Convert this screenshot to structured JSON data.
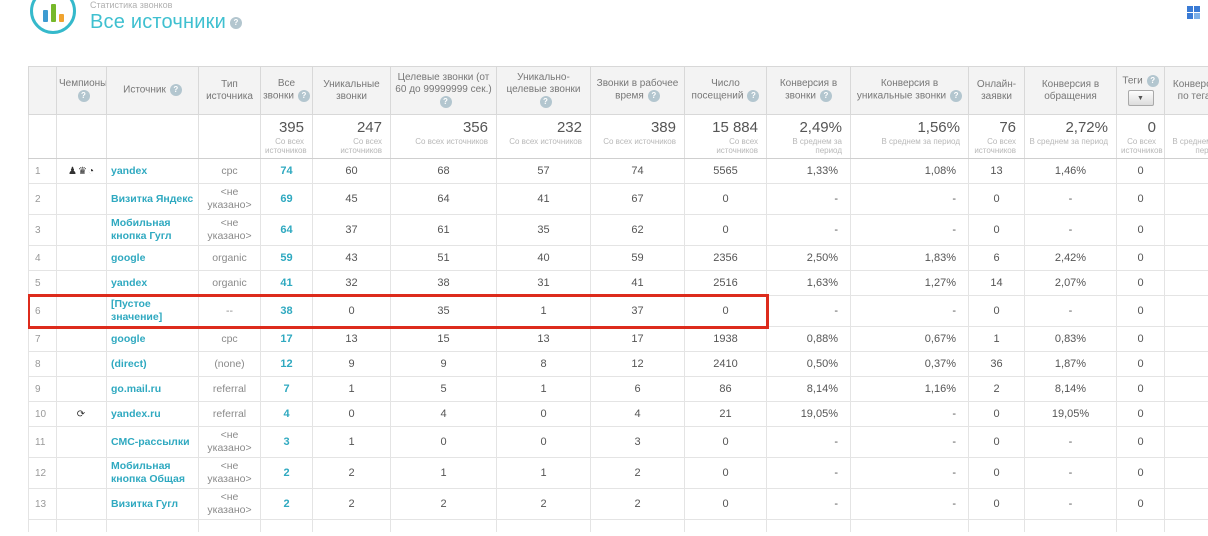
{
  "page": {
    "breadcrumb": "Статистика звонков",
    "title": "Все источники"
  },
  "icons": {
    "help_glyph": "?",
    "dropdown_glyph": "▼"
  },
  "table": {
    "highlight_color": "#dd2b1c",
    "columns": [
      {
        "label": "",
        "help": false
      },
      {
        "label": "Чемпионы",
        "help": true
      },
      {
        "label": "Источник",
        "help": true
      },
      {
        "label": "Тип источника",
        "help": false
      },
      {
        "label": "Все звонки",
        "help": true
      },
      {
        "label": "Уникальные звонки",
        "help": false
      },
      {
        "label": "Целевые звонки (от 60 до 99999999 сек.)",
        "help": true
      },
      {
        "label": "Уникально-целевые звонки",
        "help": true
      },
      {
        "label": "Звонки в рабочее время",
        "help": true
      },
      {
        "label": "Число посещений",
        "help": true
      },
      {
        "label": "Конверсия в звонки",
        "help": true
      },
      {
        "label": "Конверсия в уникальные звонки",
        "help": true
      },
      {
        "label": "Онлайн-заявки",
        "help": false
      },
      {
        "label": "Конверсия в обращения",
        "help": false
      },
      {
        "label": "Теги",
        "help": true,
        "dropdown": true
      },
      {
        "label": "Конверсия по тегам",
        "help": false
      }
    ],
    "totals": [
      {
        "value": "395",
        "caption": "Со всех источников"
      },
      {
        "value": "247",
        "caption": "Со всех источников"
      },
      {
        "value": "356",
        "caption": "Со всех источников"
      },
      {
        "value": "232",
        "caption": "Со всех источников"
      },
      {
        "value": "389",
        "caption": "Со всех источников"
      },
      {
        "value": "15 884",
        "caption": "Со всех источников"
      },
      {
        "value": "2,49%",
        "caption": "В среднем за период"
      },
      {
        "value": "1,56%",
        "caption": "В среднем за период"
      },
      {
        "value": "76",
        "caption": "Со всех источников"
      },
      {
        "value": "2,72%",
        "caption": "В среднем за период"
      },
      {
        "value": "0",
        "caption": "Со всех источников"
      },
      {
        "value": "-",
        "caption": "В среднем за период"
      }
    ],
    "rows": [
      {
        "num": "1",
        "champions": [
          {
            "name": "pawn-icon",
            "glyph": "♟"
          },
          {
            "name": "crown-icon",
            "glyph": "♛"
          },
          {
            "name": "clock-icon",
            "glyph": "◔"
          }
        ],
        "source": "yandex",
        "type": "cpc",
        "values": [
          "74",
          "60",
          "68",
          "57",
          "74",
          "5565",
          "1,33%",
          "1,08%",
          "13",
          "1,46%",
          "0",
          "-"
        ]
      },
      {
        "num": "2",
        "champions": [],
        "source": "Визитка Яндекс",
        "type": "<не указано>",
        "values": [
          "69",
          "45",
          "64",
          "41",
          "67",
          "0",
          "-",
          "-",
          "0",
          "-",
          "0",
          "-"
        ]
      },
      {
        "num": "3",
        "champions": [],
        "source": "Мобильная кнопка Гугл",
        "type": "<не указано>",
        "values": [
          "64",
          "37",
          "61",
          "35",
          "62",
          "0",
          "-",
          "-",
          "0",
          "-",
          "0",
          "-"
        ]
      },
      {
        "num": "4",
        "champions": [],
        "source": "google",
        "type": "organic",
        "values": [
          "59",
          "43",
          "51",
          "40",
          "59",
          "2356",
          "2,50%",
          "1,83%",
          "6",
          "2,42%",
          "0",
          "-"
        ]
      },
      {
        "num": "5",
        "champions": [],
        "source": "yandex",
        "type": "organic",
        "values": [
          "41",
          "32",
          "38",
          "31",
          "41",
          "2516",
          "1,63%",
          "1,27%",
          "14",
          "2,07%",
          "0",
          "-"
        ]
      },
      {
        "num": "6",
        "champions": [],
        "source": "[Пустое значение]",
        "type": "--",
        "highlight": true,
        "values": [
          "38",
          "0",
          "35",
          "1",
          "37",
          "0",
          "-",
          "-",
          "0",
          "-",
          "0",
          "-"
        ]
      },
      {
        "num": "7",
        "champions": [],
        "source": "google",
        "type": "cpc",
        "values": [
          "17",
          "13",
          "15",
          "13",
          "17",
          "1938",
          "0,88%",
          "0,67%",
          "1",
          "0,83%",
          "0",
          "-"
        ]
      },
      {
        "num": "8",
        "champions": [],
        "source": "(direct)",
        "type": "(none)",
        "values": [
          "12",
          "9",
          "9",
          "8",
          "12",
          "2410",
          "0,50%",
          "0,37%",
          "36",
          "1,87%",
          "0",
          "-"
        ]
      },
      {
        "num": "9",
        "champions": [],
        "source": "go.mail.ru",
        "type": "referral",
        "values": [
          "7",
          "1",
          "5",
          "1",
          "6",
          "86",
          "8,14%",
          "1,16%",
          "2",
          "8,14%",
          "0",
          "-"
        ]
      },
      {
        "num": "10",
        "champions": [
          {
            "name": "refresh-icon",
            "glyph": "⟳"
          }
        ],
        "source": "yandex.ru",
        "type": "referral",
        "values": [
          "4",
          "0",
          "4",
          "0",
          "4",
          "21",
          "19,05%",
          "-",
          "0",
          "19,05%",
          "0",
          "-"
        ]
      },
      {
        "num": "11",
        "champions": [],
        "source": "СМС-рассылки",
        "type": "<не указано>",
        "values": [
          "3",
          "1",
          "0",
          "0",
          "3",
          "0",
          "-",
          "-",
          "0",
          "-",
          "0",
          "-"
        ]
      },
      {
        "num": "12",
        "champions": [],
        "source": "Мобильная кнопка Общая",
        "type": "<не указано>",
        "values": [
          "2",
          "2",
          "1",
          "1",
          "2",
          "0",
          "-",
          "-",
          "0",
          "-",
          "0",
          "-"
        ]
      },
      {
        "num": "13",
        "champions": [],
        "source": "Визитка Гугл",
        "type": "<не указано>",
        "values": [
          "2",
          "2",
          "2",
          "2",
          "2",
          "0",
          "-",
          "-",
          "0",
          "-",
          "0",
          "-"
        ]
      }
    ]
  }
}
